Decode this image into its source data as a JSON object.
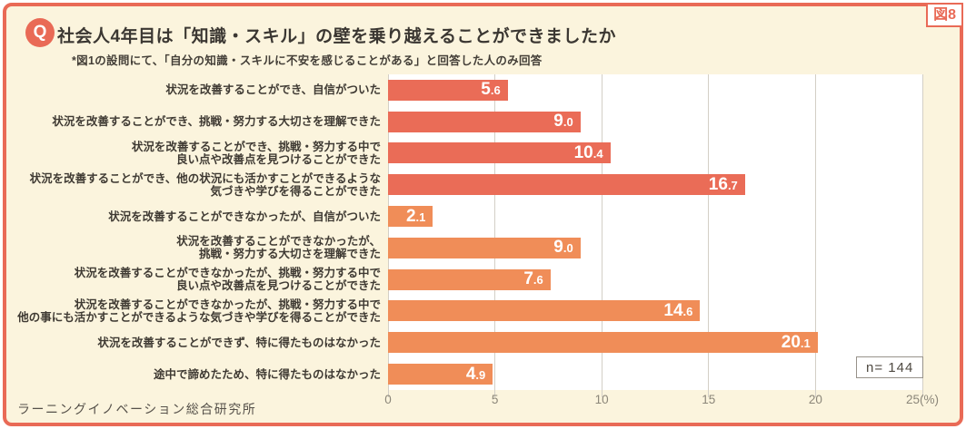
{
  "frame": {
    "tag": "図8"
  },
  "header": {
    "q_mark": "Q",
    "title": "社会人4年目は「知識・スキル」の壁を乗り越えることができましたか",
    "subtitle": "*図1の設問にて、「自分の知識・スキルに不安を感じることがある」と回答した人のみ回答"
  },
  "chart_data": {
    "type": "bar",
    "orientation": "horizontal",
    "unit": "%",
    "xlim": [
      0,
      25
    ],
    "x_tick_values": [
      0,
      5,
      10,
      15,
      20,
      25
    ],
    "x_ticks": [
      "0",
      "5",
      "10",
      "15",
      "20",
      "25(%)"
    ],
    "grid": true,
    "n_label": "n= 144",
    "colors": {
      "group1": "#ea6c57",
      "group2": "#f08d58"
    },
    "rows": [
      {
        "label_lines": [
          "状況を改善することができ、自信がついた"
        ],
        "value": 5.6,
        "display": "5.6",
        "group": "group1"
      },
      {
        "label_lines": [
          "状況を改善することができ、挑戦・努力する大切さを理解できた"
        ],
        "value": 9.0,
        "display": "9.0",
        "group": "group1"
      },
      {
        "label_lines": [
          "状況を改善することができ、挑戦・努力する中で",
          "良い点や改善点を見つけることができた"
        ],
        "value": 10.4,
        "display": "10.4",
        "group": "group1"
      },
      {
        "label_lines": [
          "状況を改善することができ、他の状況にも活かすことができるような",
          "気づきや学びを得ることができた"
        ],
        "value": 16.7,
        "display": "16.7",
        "group": "group1"
      },
      {
        "label_lines": [
          "状況を改善することができなかったが、自信がついた"
        ],
        "value": 2.1,
        "display": "2.1",
        "group": "group2"
      },
      {
        "label_lines": [
          "状況を改善することができなかったが、",
          "挑戦・努力する大切さを理解できた"
        ],
        "value": 9.0,
        "display": "9.0",
        "group": "group2"
      },
      {
        "label_lines": [
          "状況を改善することができなかったが、挑戦・努力する中で",
          "良い点や改善点を見つけることができた"
        ],
        "value": 7.6,
        "display": "7.6",
        "group": "group2"
      },
      {
        "label_lines": [
          "状況を改善することができなかったが、挑戦・努力する中で",
          "他の事にも活かすことができるような気づきや学びを得ることができた"
        ],
        "value": 14.6,
        "display": "14.6",
        "group": "group2"
      },
      {
        "label_lines": [
          "状況を改善することができず、特に得たものはなかった"
        ],
        "value": 20.1,
        "display": "20.1",
        "group": "group2"
      },
      {
        "label_lines": [
          "途中で諦めたため、特に得たものはなかった"
        ],
        "value": 4.9,
        "display": "4.9",
        "group": "group2"
      }
    ]
  },
  "footer": {
    "source": "ラーニングイノベーション総合研究所"
  }
}
